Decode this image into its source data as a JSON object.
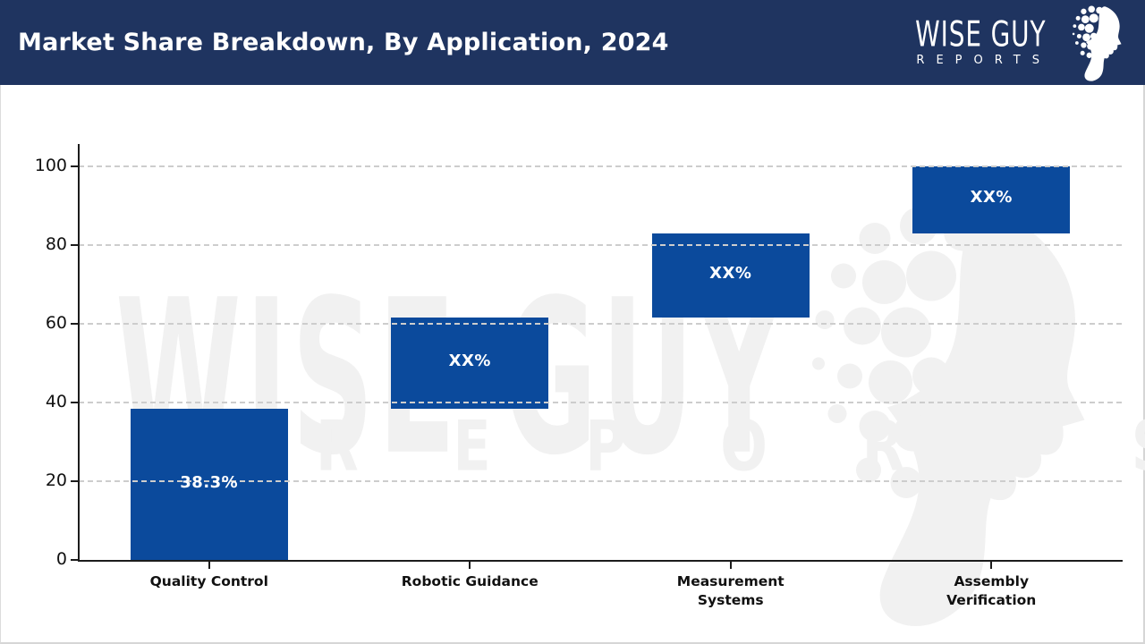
{
  "header": {
    "title": "Market Share Breakdown, By Application, 2024",
    "logo": {
      "line1": "WISE GUY",
      "line2": "REPORTS"
    }
  },
  "watermark": {
    "line1": "WISE GUY",
    "line2": "R E P O R T S"
  },
  "chart_data": {
    "type": "bar",
    "subtype": "waterfall",
    "title": "Market Share Breakdown, By Application, 2024",
    "categories": [
      "Quality Control",
      "Robotic Guidance",
      "Measurement\nSystems",
      "Assembly\nVerification"
    ],
    "values": [
      38.3,
      23.3,
      21.4,
      17.0
    ],
    "bar_labels": [
      "38.3%",
      "XX%",
      "XX%",
      "XX%"
    ],
    "series_note": "segments stack cumulatively from 0 to 100",
    "xlabel": "",
    "ylabel": "",
    "yticks": [
      0,
      20,
      40,
      60,
      80,
      100
    ],
    "ylim": [
      0,
      105
    ],
    "grid": "dashed-horizontal",
    "legend": "none",
    "bar_color": "#0b4a9c",
    "grid_color": "#cdcdcd",
    "axis_color": "#1c1c1c",
    "header_color": "#1f3460",
    "label_color": "#ffffff"
  }
}
